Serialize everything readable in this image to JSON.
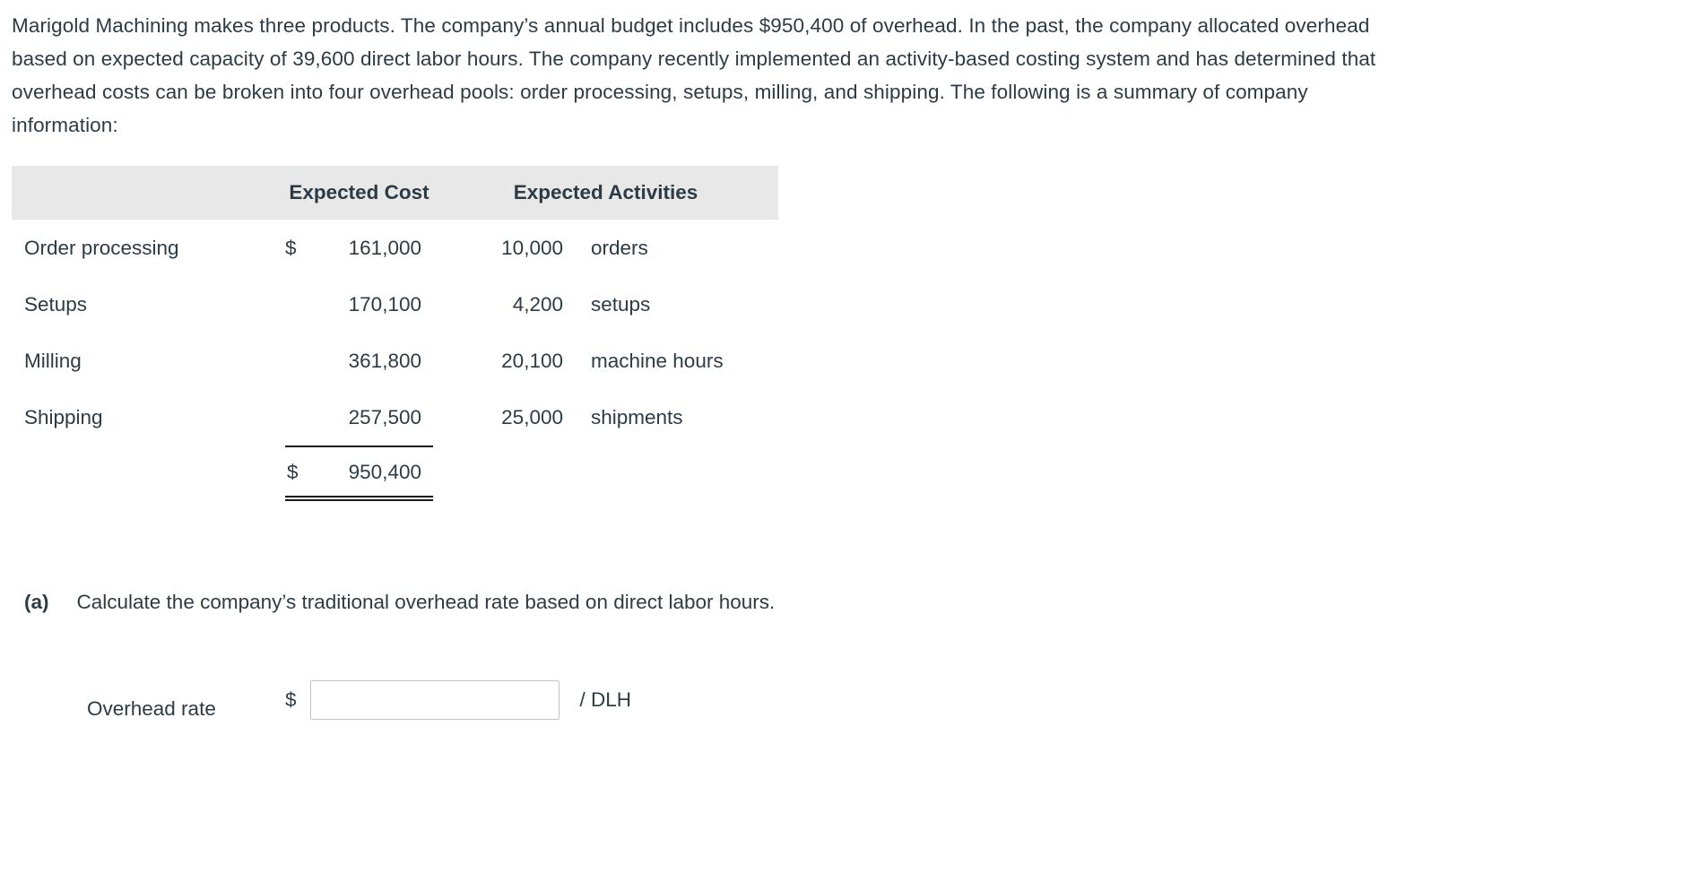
{
  "problem": {
    "intro": "Marigold Machining makes three products. The company’s annual budget includes $950,400 of overhead. In the past, the company allocated overhead based on expected capacity of 39,600 direct labor hours. The company recently implemented an activity-based costing system and has determined that overhead costs can be broken into four overhead pools: order processing, setups, milling, and shipping. The following is a summary of company information:"
  },
  "table": {
    "headers": {
      "cost": "Expected Cost",
      "activities": "Expected Activities"
    },
    "rows": [
      {
        "label": "Order processing",
        "currency": "$",
        "cost": "161,000",
        "qty": "10,000",
        "unit": "orders"
      },
      {
        "label": "Setups",
        "currency": "",
        "cost": "170,100",
        "qty": "4,200",
        "unit": "setups"
      },
      {
        "label": "Milling",
        "currency": "",
        "cost": "361,800",
        "qty": "20,100",
        "unit": "machine hours"
      },
      {
        "label": "Shipping",
        "currency": "",
        "cost": "257,500",
        "qty": "25,000",
        "unit": "shipments"
      }
    ],
    "total": {
      "currency": "$",
      "value": "950,400"
    }
  },
  "part_a": {
    "label": "(a)",
    "question": "Calculate the company’s traditional overhead rate based on direct labor hours.",
    "answer": {
      "field_label": "Overhead rate",
      "prefix": "$",
      "value": "",
      "suffix": "/ DLH"
    }
  }
}
